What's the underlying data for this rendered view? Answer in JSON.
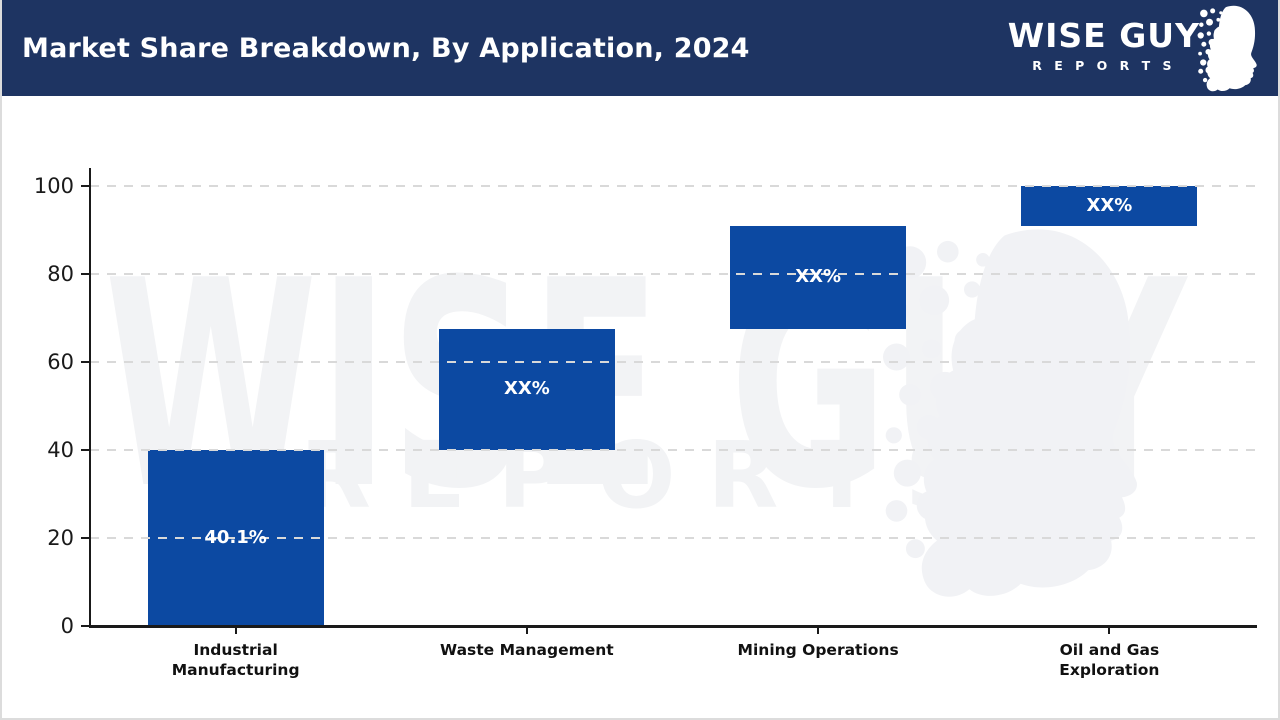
{
  "header": {
    "title": "Market Share Breakdown, By Application, 2024",
    "background_color": "#1e3462",
    "brand": {
      "name": "WISE GUY",
      "sub": "R E P O R T S"
    }
  },
  "watermark": {
    "line1": "WISE GUY",
    "line2": "R E P O R T S"
  },
  "chart_data": {
    "type": "bar",
    "subtype": "waterfall",
    "title": "Market Share Breakdown, By Application, 2024",
    "categories": [
      "Industrial Manufacturing",
      "Waste Management",
      "Mining Operations",
      "Oil and Gas Exploration"
    ],
    "category_label_lines": [
      [
        "Industrial",
        "Manufacturing"
      ],
      [
        "Waste Management"
      ],
      [
        "Mining Operations"
      ],
      [
        "Oil and Gas",
        "Exploration"
      ]
    ],
    "segments": [
      {
        "category": "Industrial Manufacturing",
        "start": 0,
        "end": 40.1,
        "label": "40.1%"
      },
      {
        "category": "Waste Management",
        "start": 40.1,
        "end": 67.5,
        "label": "XX%"
      },
      {
        "category": "Mining Operations",
        "start": 67.5,
        "end": 91,
        "label": "XX%"
      },
      {
        "category": "Oil and Gas Exploration",
        "start": 91,
        "end": 100,
        "label": "XX%"
      }
    ],
    "xlabel": "",
    "ylabel": "",
    "ylim": [
      0,
      100
    ],
    "yticks": [
      0,
      20,
      40,
      60,
      80,
      100
    ],
    "grid": {
      "axis": "y",
      "style": "dashed",
      "color": "#d9d9d9",
      "above_bars": true
    },
    "legend": null,
    "bar_color": "#0c49a2",
    "bar_label_color": "#ffffff",
    "axis_color": "#1a1a1a"
  }
}
